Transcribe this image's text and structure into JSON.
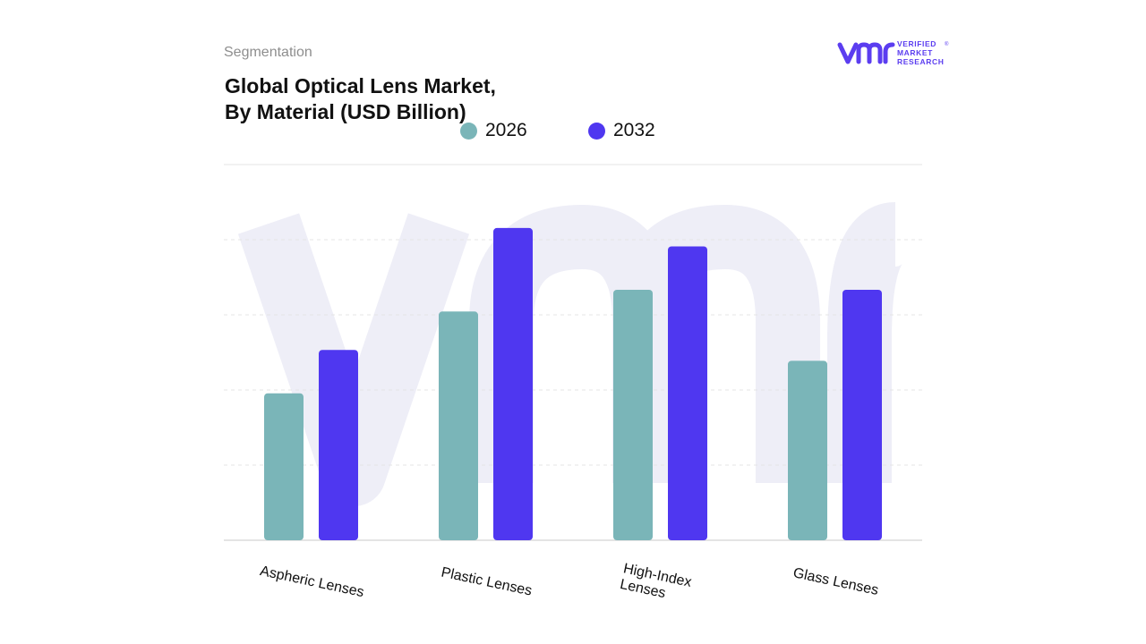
{
  "header": {
    "subtitle": "Segmentation",
    "title_line1": "Global Optical Lens Market,",
    "title_line2": "By Material (USD Billion)"
  },
  "logo": {
    "mark": "vmr",
    "line1": "VERIFIED",
    "line2": "MARKET",
    "line3": "RESEARCH",
    "registered": "®"
  },
  "colors": {
    "series_2026": "#7ab5b8",
    "series_2032": "#4f37f0",
    "logo": "#5b3df0",
    "watermark": "#eeeef7",
    "grid": "#e4e4e4"
  },
  "chart_data": {
    "type": "bar",
    "title": "Global Optical Lens Market, By Material (USD Billion)",
    "categories": [
      "Aspheric Lenses",
      "Plastic Lenses",
      "High-Index Lenses",
      "Glass Lenses"
    ],
    "category_lines": [
      [
        "Aspheric Lenses"
      ],
      [
        "Plastic Lenses"
      ],
      [
        "High-Index",
        "Lenses"
      ],
      [
        "Glass Lenses"
      ]
    ],
    "series": [
      {
        "name": "2026",
        "color": "#7ab5b8",
        "values": [
          1.76,
          2.74,
          3.0,
          2.15
        ]
      },
      {
        "name": "2032",
        "color": "#4f37f0",
        "values": [
          2.28,
          3.74,
          3.52,
          3.0
        ]
      }
    ],
    "ylim": [
      0,
      4.5
    ],
    "xlabel": "",
    "ylabel": "",
    "grid": true,
    "legend": "top-center",
    "y_tick_labels_visible": false
  }
}
